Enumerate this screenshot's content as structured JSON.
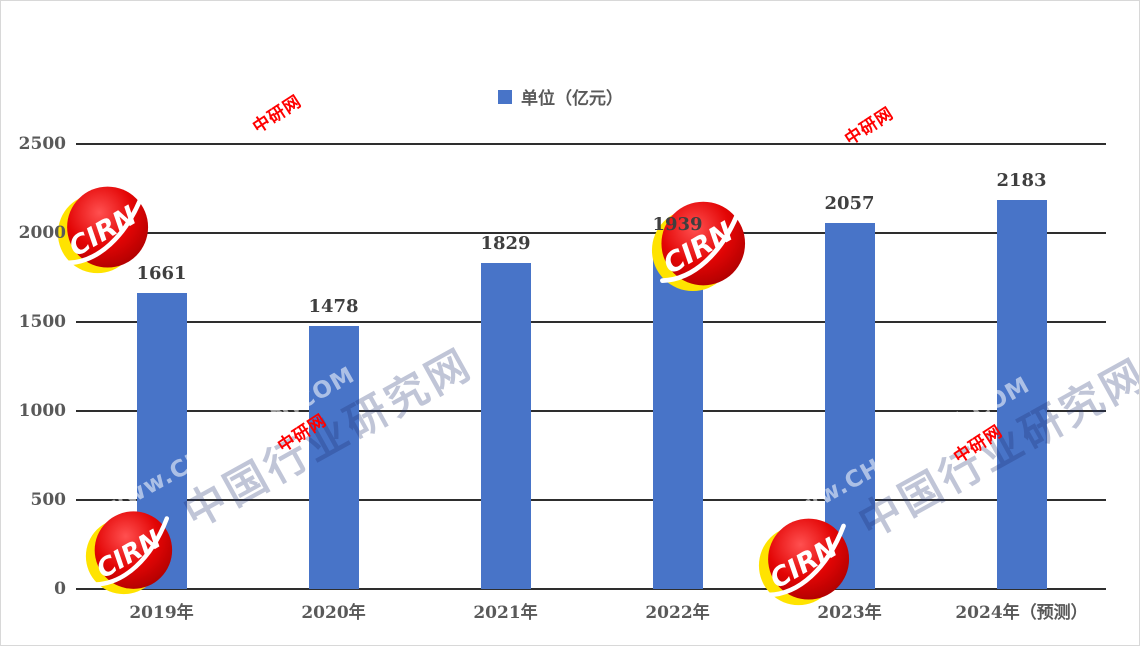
{
  "chart_data": {
    "type": "bar",
    "title": "",
    "legend": {
      "label": "单位（亿元）",
      "position": "top-center"
    },
    "categories": [
      "2019年",
      "2020年",
      "2021年",
      "2022年",
      "2023年",
      "2024年（预测）"
    ],
    "values": [
      1661,
      1478,
      1829,
      1939,
      2057,
      2183
    ],
    "value_labels": [
      "1661",
      "1478",
      "1829",
      "1939",
      "2057",
      "2183"
    ],
    "xlabel": "",
    "ylabel": "",
    "ylim": [
      0,
      2500
    ],
    "yticks": [
      0,
      500,
      1000,
      1500,
      2000,
      2500
    ],
    "grid": true,
    "bar_color": "#4874C8"
  },
  "colors": {
    "bar": "#4874C8",
    "gridline": "#2e2e2e",
    "axis_label": "#595959",
    "value_label": "#3f3f3f",
    "stamp_red": "#ff0000",
    "logo_red": "#d40000",
    "logo_yellow": "#ffe300"
  },
  "watermarks": {
    "logo_text": "CIRN",
    "stamp_text": "中研网",
    "site_text": "www.CHINAIRN.COM",
    "cn_text": "中国行业研究网"
  }
}
